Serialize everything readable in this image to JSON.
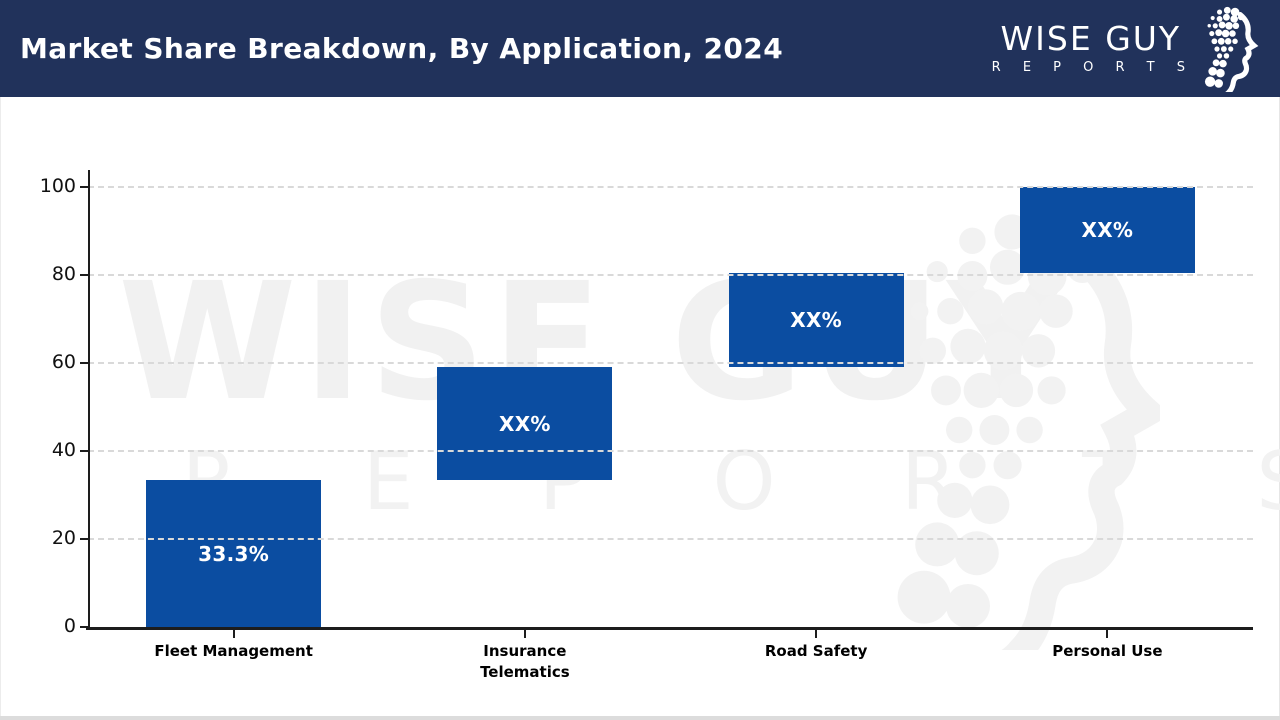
{
  "header": {
    "title": "Market Share Breakdown, By Application, 2024",
    "logo": {
      "line1": "WISE GUY",
      "line2": "R E P O R T S",
      "mark": "dotted-head-profile"
    },
    "background_color": "#21325b"
  },
  "watermark": {
    "line1": "WISE GUY",
    "line2": "R E P O R T S",
    "mark": "dotted-head-profile",
    "color": "#f1f1f1"
  },
  "chart_data": {
    "type": "bar",
    "subtype": "waterfall",
    "title": "Market Share Breakdown, By Application, 2024",
    "categories": [
      "Fleet Management",
      "Insurance Telematics",
      "Road Safety",
      "Personal Use"
    ],
    "segments": [
      {
        "category": "Fleet Management",
        "category_lines": [
          "Fleet Management"
        ],
        "start": 0,
        "end": 33.3,
        "value_label": "33.3%"
      },
      {
        "category": "Insurance Telematics",
        "category_lines": [
          "Insurance",
          "Telematics"
        ],
        "start": 33.3,
        "end": 59,
        "value_label": "XX%"
      },
      {
        "category": "Road Safety",
        "category_lines": [
          "Road Safety"
        ],
        "start": 59,
        "end": 80.5,
        "value_label": "XX%"
      },
      {
        "category": "Personal Use",
        "category_lines": [
          "Personal Use"
        ],
        "start": 80.5,
        "end": 100,
        "value_label": "XX%"
      }
    ],
    "ylim": [
      0,
      100
    ],
    "yticks": [
      0,
      20,
      40,
      60,
      80,
      100
    ],
    "xlabel": "",
    "ylabel": "",
    "grid": "horizontal-dashed",
    "legend": "none",
    "bar_color": "#0b4da1",
    "value_label_color": "#ffffff",
    "gridline_color": "#d9d9d9",
    "axis_color": "#1d1d1d"
  }
}
